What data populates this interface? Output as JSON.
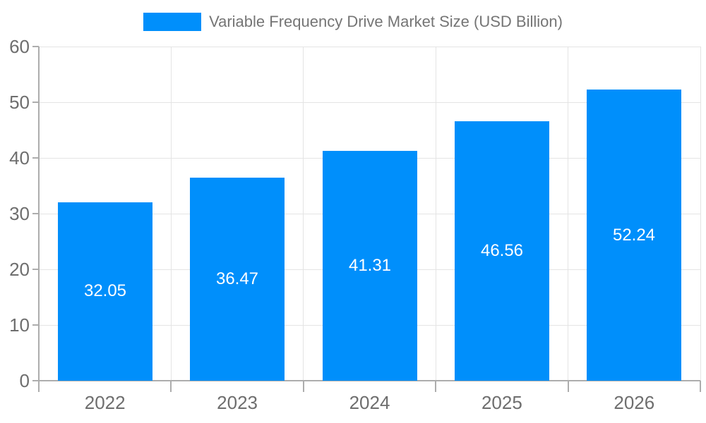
{
  "chart_data": {
    "type": "bar",
    "title": "Variable Frequency Drive Market Size (USD Billion)",
    "legend": {
      "label": "Variable Frequency Drive Market Size (USD Billion)",
      "position": "top"
    },
    "categories": [
      "2022",
      "2023",
      "2024",
      "2025",
      "2026"
    ],
    "values": [
      32.05,
      36.47,
      41.31,
      46.56,
      52.24
    ],
    "data_labels": [
      "32.05",
      "36.47",
      "41.31",
      "46.56",
      "52.24"
    ],
    "xlabel": "",
    "ylabel": "",
    "ylim": [
      0,
      60
    ],
    "yticks": [
      0,
      10,
      20,
      30,
      40,
      50,
      60
    ],
    "grid": true,
    "colors": {
      "bar": "#008FFB",
      "data_label": "#FFFFFF",
      "axis_label": "#6E6E6E",
      "legend_label": "#757575",
      "grid_line": "#E4E4E4",
      "axis_line": "#ADADAD"
    }
  }
}
